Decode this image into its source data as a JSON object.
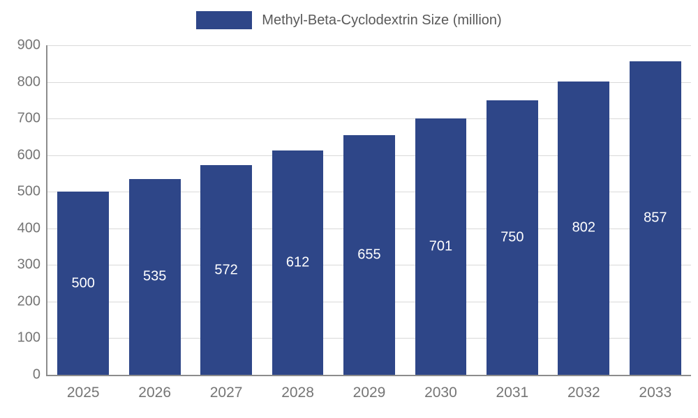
{
  "chart_data": {
    "type": "bar",
    "title": "",
    "legend_label": "Methyl-Beta-Cyclodextrin Size (million)",
    "categories": [
      "2025",
      "2026",
      "2027",
      "2028",
      "2029",
      "2030",
      "2031",
      "2032",
      "2033"
    ],
    "values": [
      500,
      535,
      572,
      612,
      655,
      701,
      750,
      802,
      857
    ],
    "xlabel": "",
    "ylabel": "",
    "ylim": [
      0,
      900
    ],
    "ytick_step": 100,
    "grid": "horizontal",
    "legend_position": "top-center",
    "bar_color": "#2e4688",
    "value_label_color": "#ffffff",
    "tick_label_color": "#757575",
    "gridline_color": "#d9d9d9",
    "axis_color": "#8c8c8c"
  }
}
